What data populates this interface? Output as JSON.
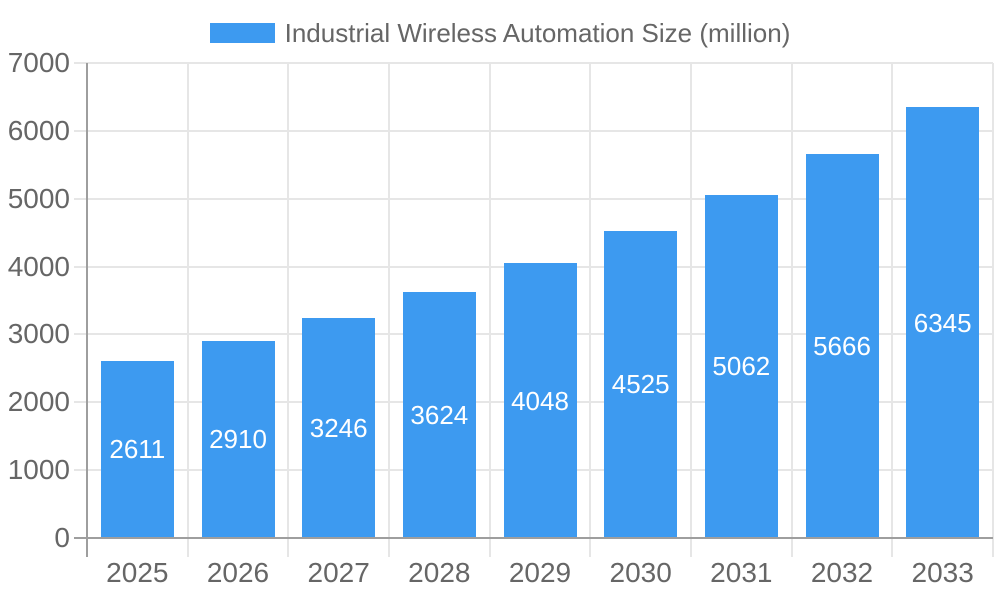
{
  "chart_data": {
    "type": "bar",
    "title": "Industrial Wireless Automation Size (million)",
    "categories": [
      "2025",
      "2026",
      "2027",
      "2028",
      "2029",
      "2030",
      "2031",
      "2032",
      "2033"
    ],
    "series": [
      {
        "name": "Industrial Wireless Automation Size (million)",
        "values": [
          2611,
          2910,
          3246,
          3624,
          4048,
          4525,
          5062,
          5666,
          6345
        ]
      }
    ],
    "value_labels": [
      "2611",
      "2910",
      "3246",
      "3624",
      "4048",
      "4525",
      "5062",
      "5666",
      "6345"
    ],
    "xlabel": "",
    "ylabel": "",
    "ylim": [
      0,
      7000
    ],
    "yticks": [
      0,
      1000,
      2000,
      3000,
      4000,
      5000,
      6000,
      7000
    ],
    "grid": "on",
    "legend_position": "top",
    "colors": {
      "bar": "#3D9AF0",
      "value_label_text": "#ffffff",
      "axis_text": "#666666",
      "grid_line": "#e6e6e6",
      "axis_line": "#9e9e9e",
      "legend_text": "#666666"
    }
  }
}
